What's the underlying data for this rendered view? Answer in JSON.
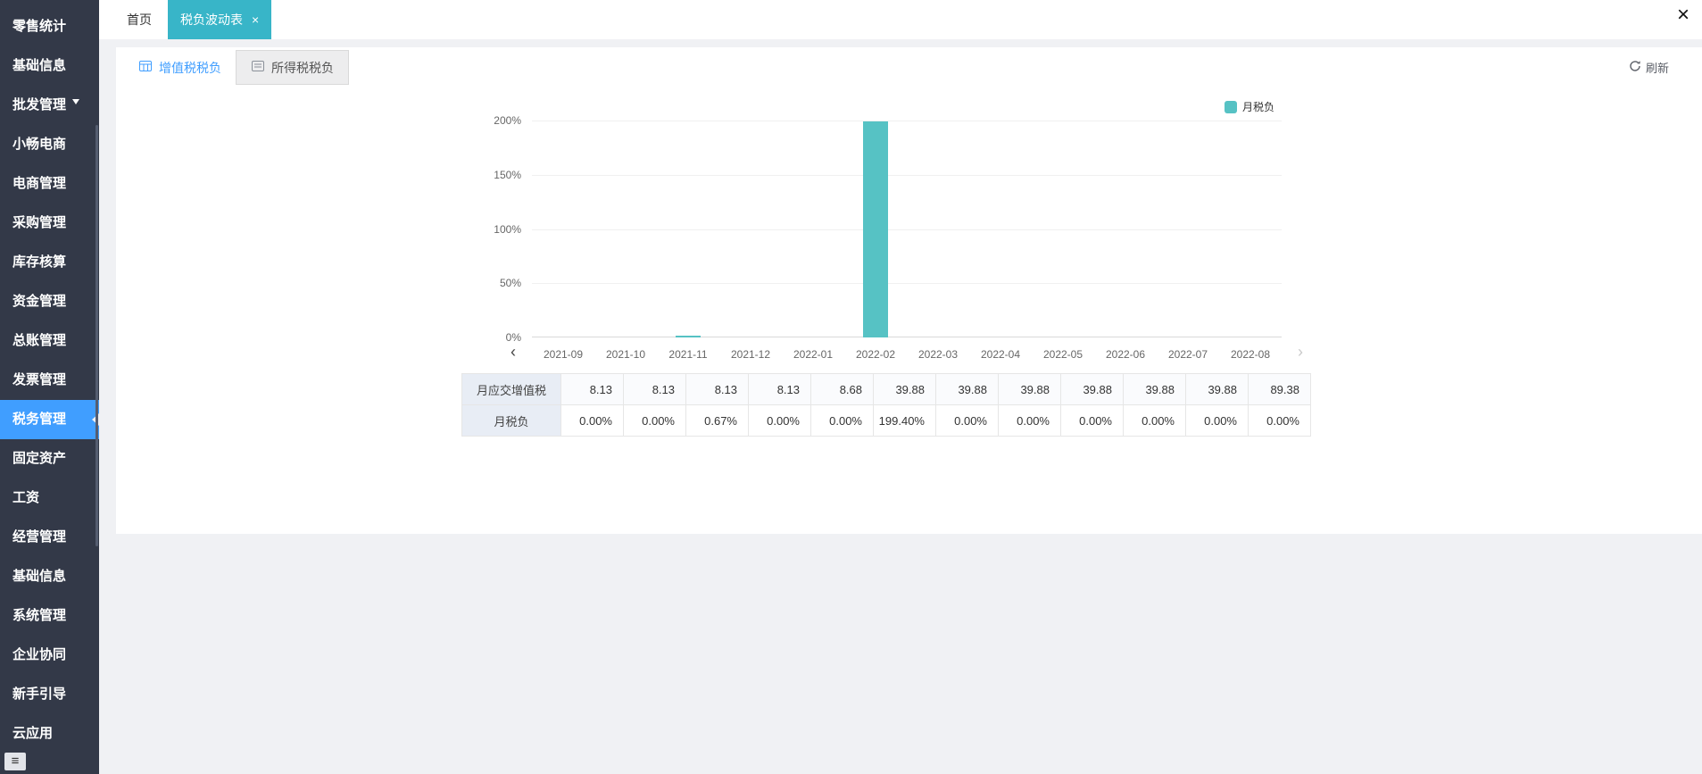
{
  "window": {
    "close_icon": "×"
  },
  "icons": {
    "chevron_left": "‹",
    "chevron_right": "›",
    "menu": "≡"
  },
  "sidebar": {
    "items": [
      {
        "label": "零售统计"
      },
      {
        "label": "基础信息"
      },
      {
        "label": "批发管理",
        "has_dropdown": true
      },
      {
        "label": "小畅电商"
      },
      {
        "label": "电商管理"
      },
      {
        "label": "采购管理"
      },
      {
        "label": "库存核算"
      },
      {
        "label": "资金管理"
      },
      {
        "label": "总账管理"
      },
      {
        "label": "发票管理"
      },
      {
        "label": "税务管理",
        "active": true
      },
      {
        "label": "固定资产"
      },
      {
        "label": "工资"
      },
      {
        "label": "经营管理"
      },
      {
        "label": "基础信息"
      },
      {
        "label": "系统管理"
      },
      {
        "label": "企业协同"
      },
      {
        "label": "新手引导"
      },
      {
        "label": "云应用"
      }
    ]
  },
  "tabbar": {
    "home_tab": "首页",
    "active_tab": "税负波动表",
    "close_icon": "×"
  },
  "content": {
    "tabs": [
      {
        "label": "增值税税负",
        "active": true
      },
      {
        "label": "所得税税负",
        "active": false
      }
    ],
    "refresh_label": "刷新"
  },
  "chart_data": {
    "type": "bar",
    "title": "",
    "categories": [
      "2021-09",
      "2021-10",
      "2021-11",
      "2021-12",
      "2022-01",
      "2022-02",
      "2022-03",
      "2022-04",
      "2022-05",
      "2022-06",
      "2022-07",
      "2022-08"
    ],
    "series": [
      {
        "name": "月税负",
        "values": [
          0,
          0,
          0.67,
          0,
          0,
          199.4,
          0,
          0,
          0,
          0,
          0,
          0
        ]
      }
    ],
    "xlabel": "",
    "ylabel": "",
    "ylim": [
      0,
      200
    ],
    "yticks": [
      "0%",
      "50%",
      "100%",
      "150%",
      "200%"
    ],
    "grid": true,
    "legend_position": "top-right",
    "bar_color": "#56c2c4"
  },
  "table": {
    "rows": [
      {
        "label": "月应交增值税",
        "values": [
          "8.13",
          "8.13",
          "8.13",
          "8.13",
          "8.68",
          "39.88",
          "39.88",
          "39.88",
          "39.88",
          "39.88",
          "39.88",
          "89.38"
        ]
      },
      {
        "label": "月税负",
        "values": [
          "0.00%",
          "0.00%",
          "0.67%",
          "0.00%",
          "0.00%",
          "199.40%",
          "0.00%",
          "0.00%",
          "0.00%",
          "0.00%",
          "0.00%",
          "0.00%"
        ]
      }
    ]
  },
  "colors": {
    "accent_blue": "#409eff",
    "tab_teal": "#38b5c8",
    "bar_teal": "#56c2c4",
    "sidebar_bg": "#333948"
  }
}
